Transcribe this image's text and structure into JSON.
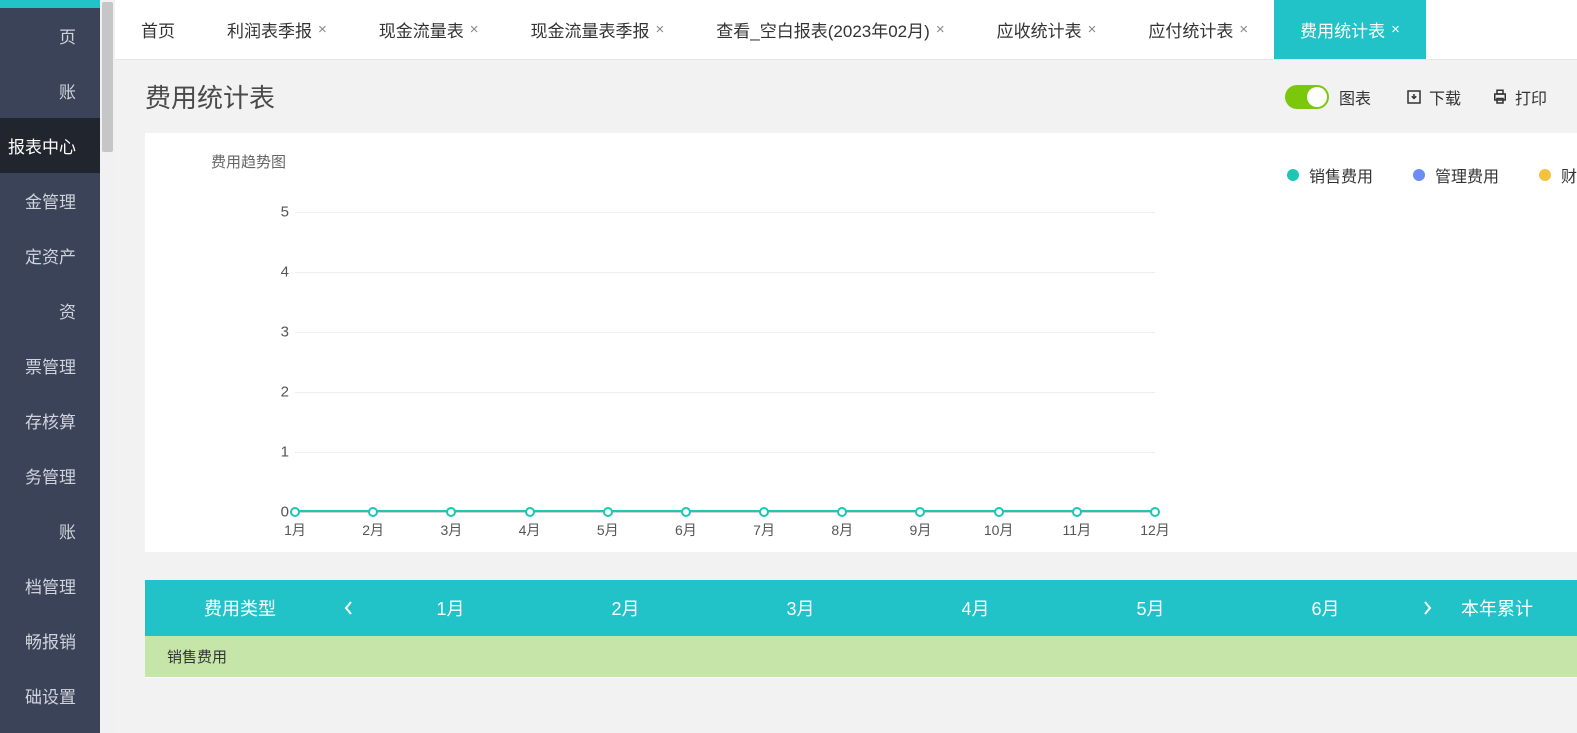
{
  "sidebar": {
    "items": [
      {
        "label": "页"
      },
      {
        "label": "账"
      },
      {
        "label": "报表中心"
      },
      {
        "label": "金管理"
      },
      {
        "label": "定资产"
      },
      {
        "label": "资"
      },
      {
        "label": "票管理"
      },
      {
        "label": "存核算"
      },
      {
        "label": "务管理"
      },
      {
        "label": "账"
      },
      {
        "label": "档管理"
      },
      {
        "label": "畅报销"
      },
      {
        "label": "础设置"
      }
    ],
    "active_index": 2
  },
  "tabs": {
    "items": [
      {
        "label": "首页",
        "closable": false
      },
      {
        "label": "利润表季报",
        "closable": true
      },
      {
        "label": "现金流量表",
        "closable": true
      },
      {
        "label": "现金流量表季报",
        "closable": true
      },
      {
        "label": "查看_空白报表(2023年02月)",
        "closable": true
      },
      {
        "label": "应收统计表",
        "closable": true
      },
      {
        "label": "应付统计表",
        "closable": true
      },
      {
        "label": "费用统计表",
        "closable": true
      }
    ],
    "active_index": 7
  },
  "header": {
    "title": "费用统计表",
    "toggle_label": "图表",
    "download_label": "下载",
    "print_label": "打印"
  },
  "chart": {
    "title": "费用趋势图",
    "type": "line",
    "legend": [
      {
        "label": "销售费用",
        "color": "#1ec6b6"
      },
      {
        "label": "管理费用",
        "color": "#6e8cf5"
      },
      {
        "label": "财",
        "color": "#f5c23e"
      }
    ],
    "y": {
      "min": 0,
      "max": 5,
      "step": 1,
      "ticks": [
        0,
        1,
        2,
        3,
        4,
        5
      ]
    },
    "x_labels": [
      "1月",
      "2月",
      "3月",
      "4月",
      "5月",
      "6月",
      "7月",
      "8月",
      "9月",
      "10月",
      "11月",
      "12月"
    ],
    "series": [
      {
        "name": "销售费用",
        "color": "#1ec6b6",
        "values": [
          0,
          0,
          0,
          0,
          0,
          0,
          0,
          0,
          0,
          0,
          0,
          0
        ]
      }
    ],
    "grid_color": "#eceef0",
    "axis_color": "#cfd3d6",
    "background_color": "#ffffff",
    "marker_fill": "#ffffff",
    "tick_fontsize": 15,
    "xlabel_fontsize": 14
  },
  "table": {
    "type_header": "费用类型",
    "month_headers": [
      "1月",
      "2月",
      "3月",
      "4月",
      "5月",
      "6月"
    ],
    "total_header": "本年累计",
    "rows": [
      {
        "type": "销售费用",
        "cells": [
          "",
          "",
          "",
          "",
          "",
          ""
        ],
        "bg": "#c6e6a9"
      }
    ],
    "header_bg": "#21c2c8",
    "header_color": "#ffffff"
  },
  "colors": {
    "teal": "#21c2c8",
    "sidebar_bg": "#3b4358",
    "sidebar_active_bg": "#20252e",
    "toggle_on": "#7ac70c"
  }
}
